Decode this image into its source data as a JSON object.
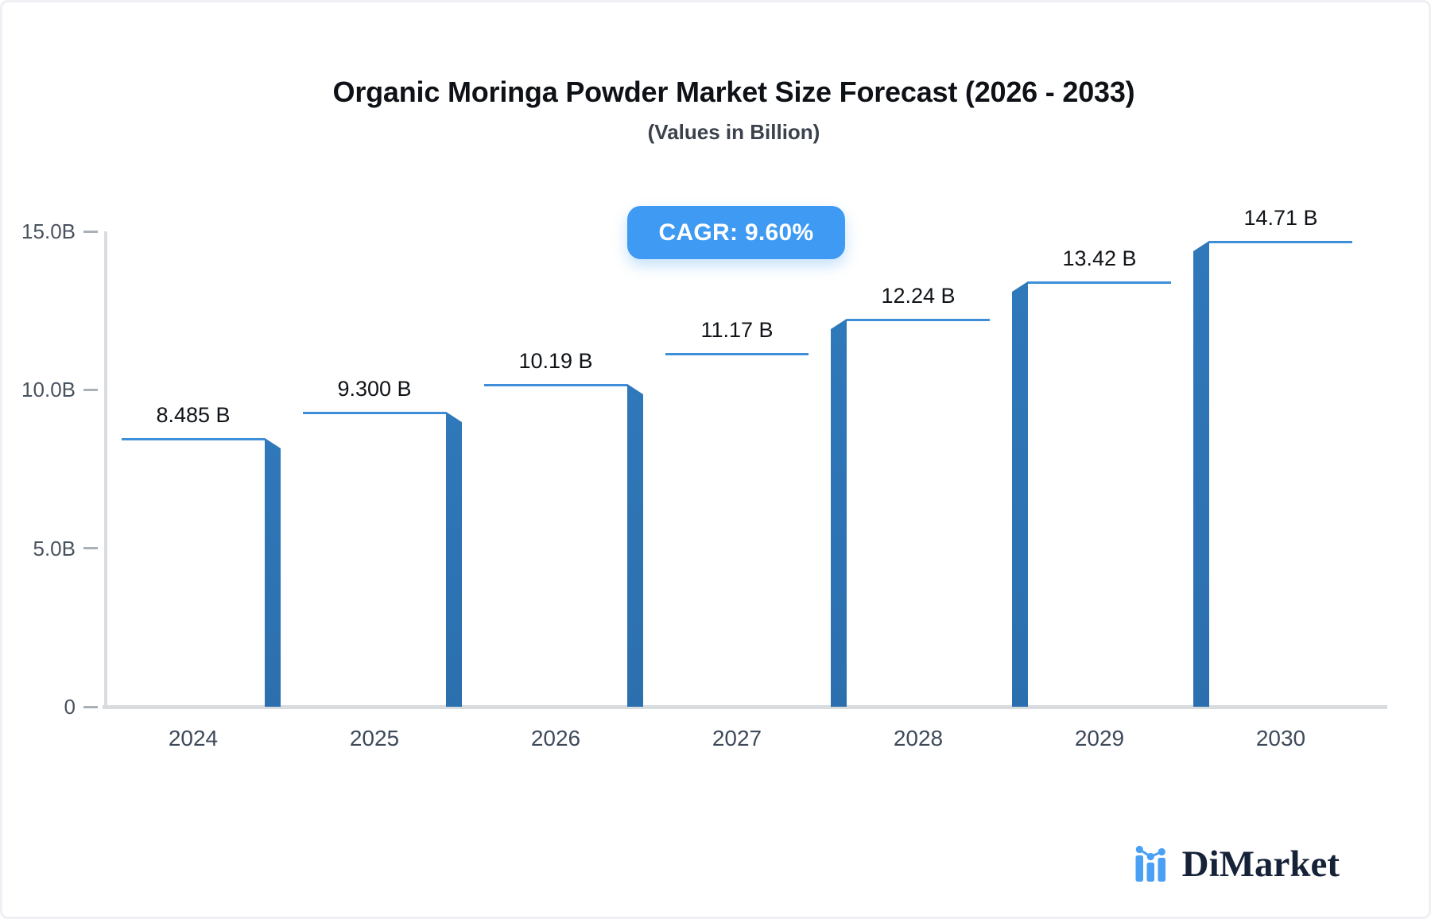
{
  "header": {
    "title": "Organic Moringa Powder Market Size Forecast (2026 - 2033)",
    "subtitle": "(Values in Billion)"
  },
  "badge": {
    "label": "CAGR: 9.60%"
  },
  "chart_data": {
    "type": "bar",
    "title": "Organic Moringa Powder Market Size Forecast (2026 - 2033)",
    "subtitle": "(Values in Billion)",
    "cagr_label": "CAGR: 9.60%",
    "categories": [
      "2024",
      "2025",
      "2026",
      "2027",
      "2028",
      "2029",
      "2030"
    ],
    "values": [
      8.485,
      9.3,
      10.19,
      11.17,
      12.24,
      13.42,
      14.71
    ],
    "value_labels": [
      "8.485 B",
      "9.300 B",
      "10.19 B",
      "11.17 B",
      "12.24 B",
      "13.42 B",
      "14.71 B"
    ],
    "xlabel": "",
    "ylabel": "",
    "ylim": [
      0,
      15
    ],
    "yticks": [
      {
        "value": 0,
        "label": "0"
      },
      {
        "value": 5,
        "label": "5.0B"
      },
      {
        "value": 10,
        "label": "10.0B"
      },
      {
        "value": 15,
        "label": "15.0B"
      }
    ],
    "grid": false,
    "legend": false,
    "bar_color_top": "#58a5ec",
    "bar_color_bottom": "#3c97ef",
    "bar_side_color": "#2d73b3",
    "axis_color": "#d9dcdf"
  },
  "footer": {
    "brand": "DiMarket"
  },
  "colors": {
    "accent_blue": "#3e9af2",
    "dark_navy": "#152238",
    "logo_blue": "#4aa0f4"
  }
}
